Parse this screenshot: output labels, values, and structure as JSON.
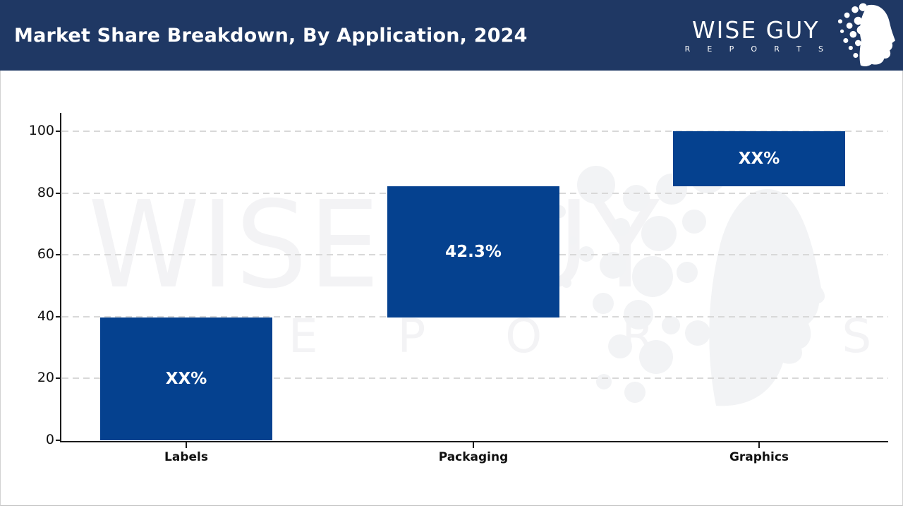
{
  "header": {
    "title": "Market Share Breakdown, By Application, 2024",
    "logo": {
      "line1": "WISE GUY",
      "line2": "REPORTS"
    }
  },
  "watermark": {
    "line1": "WISE GUY",
    "line2": "REPORTS"
  },
  "colors": {
    "header_bg": "#1F3864",
    "bar_blue": "#05418F",
    "grid_gray": "#D8D8D8",
    "watermark_gray": "#F3F3F5"
  },
  "chart_data": {
    "type": "bar",
    "subtype": "floating-waterfall",
    "title": "Market Share Breakdown, By Application, 2024",
    "categories": [
      "Labels",
      "Packaging",
      "Graphics"
    ],
    "segments": [
      {
        "category": "Labels",
        "start": 0,
        "end": 39.8,
        "label": "XX%"
      },
      {
        "category": "Packaging",
        "start": 39.8,
        "end": 82.1,
        "label": "42.3%"
      },
      {
        "category": "Graphics",
        "start": 82.1,
        "end": 100,
        "label": "XX%"
      }
    ],
    "ylim": [
      0,
      100
    ],
    "yticks": [
      0,
      20,
      40,
      60,
      80,
      100
    ],
    "xlabel": "",
    "ylabel": "",
    "grid": "horizontal-dashed",
    "legend": "none",
    "bar_color": "#05418F",
    "value_label_color": "#FFFFFF"
  }
}
